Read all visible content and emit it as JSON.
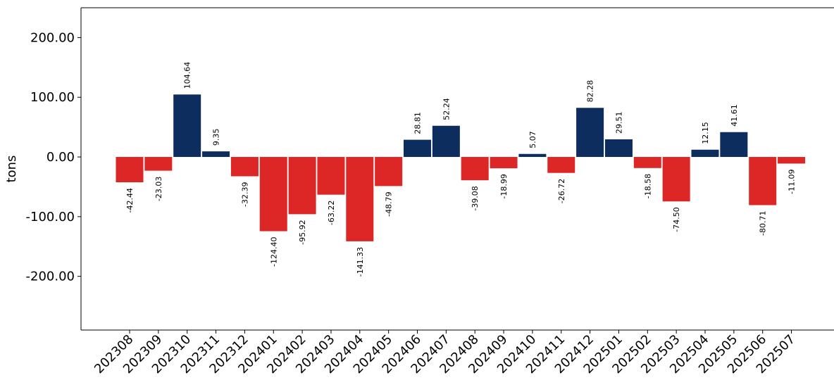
{
  "chart_data": {
    "type": "bar",
    "ylabel": "tons",
    "ylim": [
      -290,
      250
    ],
    "yticks": [
      -200,
      -100,
      0,
      100,
      200
    ],
    "ytick_labels": [
      "-200.00",
      "-100.00",
      "0.00",
      "100.00",
      "200.00"
    ],
    "grid": false,
    "categories": [
      "202308",
      "202309",
      "202310",
      "202311",
      "202312",
      "202401",
      "202402",
      "202403",
      "202404",
      "202405",
      "202406",
      "202407",
      "202408",
      "202409",
      "202410",
      "202411",
      "202412",
      "202501",
      "202502",
      "202503",
      "202504",
      "202505",
      "202506",
      "202507"
    ],
    "values": [
      -42.44,
      -23.03,
      104.64,
      9.35,
      -32.39,
      -124.4,
      -95.92,
      -63.22,
      -141.33,
      -48.79,
      28.81,
      52.24,
      -39.08,
      -18.99,
      5.07,
      -26.72,
      82.28,
      29.51,
      -18.58,
      -74.5,
      12.15,
      41.61,
      -80.71,
      -11.09
    ],
    "value_labels": [
      "-42.44",
      "-23.03",
      "104.64",
      "9.35",
      "-32.39",
      "-124.40",
      "-95.92",
      "-63.22",
      "-141.33",
      "-48.79",
      "28.81",
      "52.24",
      "-39.08",
      "-18.99",
      "5.07",
      "-26.72",
      "82.28",
      "29.51",
      "-18.58",
      "-74.50",
      "12.15",
      "41.61",
      "-80.71",
      "-11.09"
    ],
    "colors": {
      "positive": "#0d2d5e",
      "negative": "#dd2626"
    }
  }
}
